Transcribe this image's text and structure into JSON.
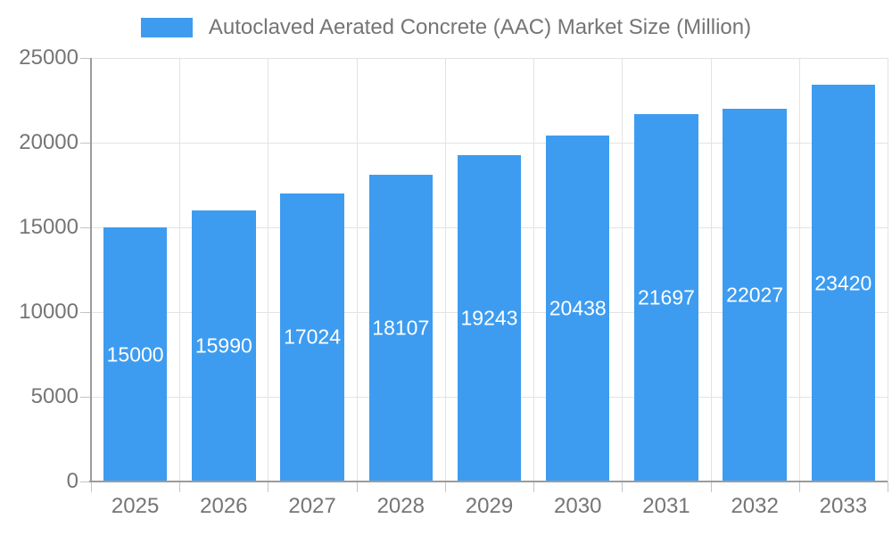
{
  "legend": {
    "label": "Autoclaved Aerated Concrete (AAC) Market Size (Million)"
  },
  "chart_data": {
    "type": "bar",
    "title": "Autoclaved Aerated Concrete (AAC) Market Size (Million)",
    "categories": [
      "2025",
      "2026",
      "2027",
      "2028",
      "2029",
      "2030",
      "2031",
      "2032",
      "2033"
    ],
    "values": [
      15000,
      15990,
      17024,
      18107,
      19243,
      20438,
      21697,
      22027,
      23420
    ],
    "xlabel": "",
    "ylabel": "",
    "ylim": [
      0,
      25000
    ],
    "yticks": [
      0,
      5000,
      10000,
      15000,
      20000,
      25000
    ],
    "grid": true,
    "legend_position": "top",
    "colors": {
      "bar": "#3d9cf0",
      "bar_label_text": "#ffffff",
      "axis_line": "#9b9b9b",
      "gridline": "#e3e3e3",
      "tick": "#c4c4c4",
      "axis_text": "#757575"
    }
  }
}
